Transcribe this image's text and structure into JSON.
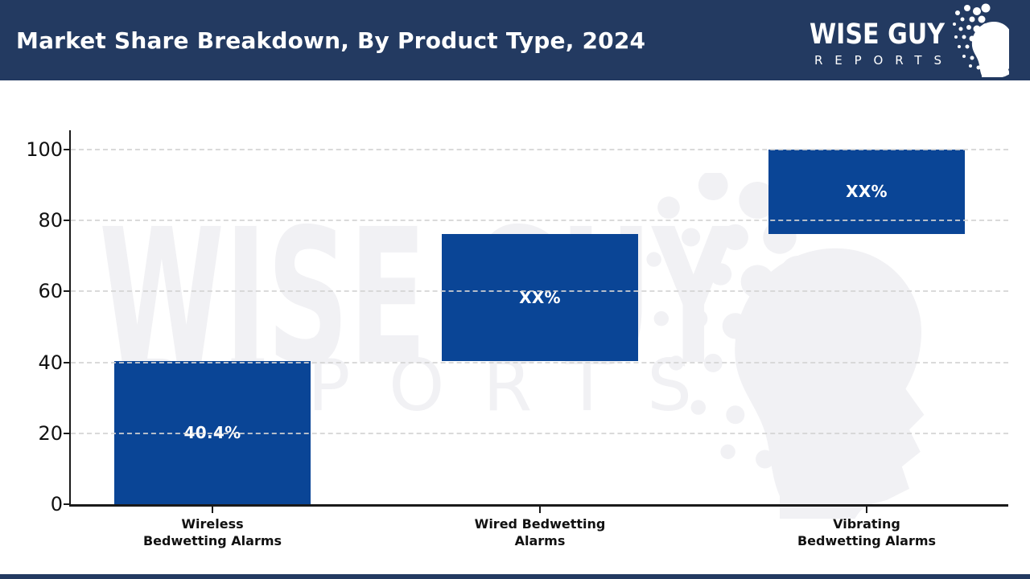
{
  "header": {
    "title": "Market Share Breakdown, By Product Type, 2024",
    "logo": {
      "line1": "WISE GUY",
      "line2": "REPORTS"
    }
  },
  "watermark": {
    "line1": "WISE GUY",
    "line2": "REPORTS"
  },
  "chart_data": {
    "type": "bar",
    "variant": "stacked-step segments (shares sum to 100%)",
    "title": "Market Share Breakdown, By Product Type, 2024",
    "categories": [
      "Wireless Bedwetting Alarms",
      "Wired Bedwetting Alarms",
      "Vibrating Bedwetting Alarms"
    ],
    "category_label_lines": [
      [
        "Wireless",
        "Bedwetting Alarms"
      ],
      [
        "Wired Bedwetting",
        "Alarms"
      ],
      [
        "Vibrating",
        "Bedwetting Alarms"
      ]
    ],
    "segments": [
      {
        "category": "Wireless Bedwetting Alarms",
        "start": 0,
        "end": 40.4,
        "label": "40.4%"
      },
      {
        "category": "Wired Bedwetting Alarms",
        "start": 40.4,
        "end": 76.3,
        "label": "XX%"
      },
      {
        "category": "Vibrating Bedwetting Alarms",
        "start": 76.3,
        "end": 100,
        "label": "XX%"
      }
    ],
    "xlabel": "",
    "ylabel": "",
    "ylim": [
      0,
      100
    ],
    "yticks": [
      0,
      20,
      40,
      60,
      80,
      100
    ],
    "grid": "horizontal dashed",
    "legend": "none"
  },
  "colors": {
    "header_bg": "#233a61",
    "footer_bg": "#233a61",
    "bar_fill": "#0a4596",
    "bar_label": "#ffffff",
    "axis": "#1a1a1a",
    "gridline": "#d4d4d4",
    "tick_label": "#111111",
    "watermark": "#f1f1f4",
    "page_bg": "#ffffff",
    "title_text": "#ffffff"
  }
}
